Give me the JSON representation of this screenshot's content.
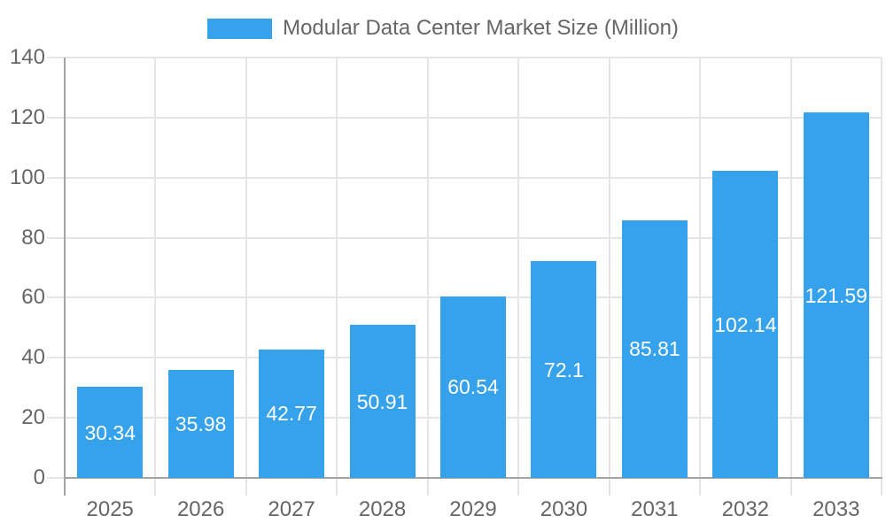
{
  "legend": {
    "label": "Modular Data Center Market Size (Million)"
  },
  "chart_data": {
    "type": "bar",
    "title": "Modular Data Center Market Size (Million)",
    "categories": [
      "2025",
      "2026",
      "2027",
      "2028",
      "2029",
      "2030",
      "2031",
      "2032",
      "2033"
    ],
    "values": [
      30.34,
      35.98,
      42.77,
      50.91,
      60.54,
      72.1,
      85.81,
      102.14,
      121.59
    ],
    "value_labels": [
      "30.34",
      "35.98",
      "42.77",
      "50.91",
      "60.54",
      "72.1",
      "85.81",
      "102.14",
      "121.59"
    ],
    "xlabel": "",
    "ylabel": "",
    "ylim": [
      0,
      140
    ],
    "ytick_step": 20,
    "ytick_labels": [
      "0",
      "20",
      "40",
      "60",
      "80",
      "100",
      "120",
      "140"
    ],
    "grid": true,
    "legend_position": "top",
    "bar_label_position": "center-inside",
    "colors": {
      "bar": "#36a2eb",
      "bar_label": "#ffffff",
      "axis_text": "#666666",
      "grid_line": "#e5e5e5",
      "axis_line": "#a4a4a4",
      "background": "#ffffff"
    }
  }
}
